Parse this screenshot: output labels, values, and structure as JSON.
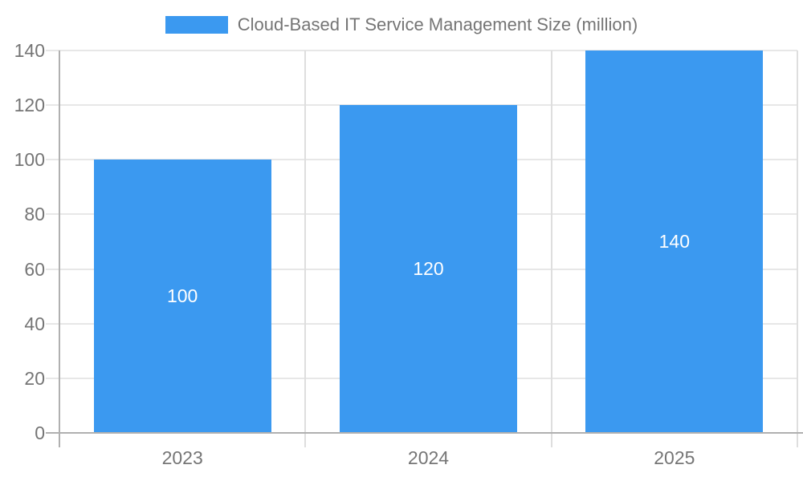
{
  "chart_data": {
    "type": "bar",
    "title": "Cloud-Based IT Service Management Size (million)",
    "categories": [
      "2023",
      "2024",
      "2025"
    ],
    "values": [
      100,
      120,
      140
    ],
    "value_labels": [
      "100",
      "120",
      "140"
    ],
    "ylim": [
      0,
      140
    ],
    "ytick_step": 20,
    "ytick_labels": [
      "0",
      "20",
      "40",
      "60",
      "80",
      "100",
      "120",
      "140"
    ],
    "xlabel": "",
    "ylabel": "",
    "grid": true,
    "legend_position": "top-center",
    "colors": {
      "bar": "#3B99F0",
      "grid_h": "#e7e7e7",
      "grid_v": "#dedede",
      "axis": "#b0b0b0",
      "tick_label": "#757575",
      "legend_text": "#757575",
      "value_label": "#ffffff",
      "background": "#ffffff"
    }
  }
}
